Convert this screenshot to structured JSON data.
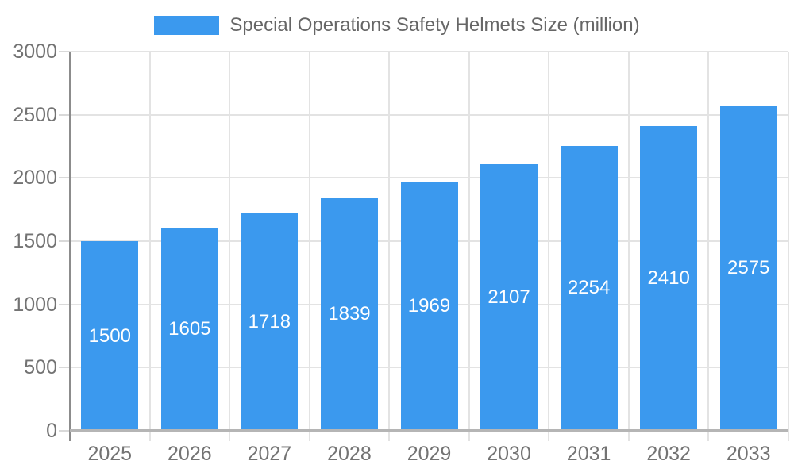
{
  "chart_data": {
    "type": "bar",
    "title": "Special Operations Safety Helmets Size (million)",
    "legend": [
      "Special Operations Safety Helmets Size (million)"
    ],
    "legend_position": "top-center",
    "categories": [
      "2025",
      "2026",
      "2027",
      "2028",
      "2029",
      "2030",
      "2031",
      "2032",
      "2033"
    ],
    "values": [
      1500,
      1605,
      1718,
      1839,
      1969,
      2107,
      2254,
      2410,
      2575
    ],
    "xlabel": "",
    "ylabel": "",
    "ylim": [
      0,
      3000
    ],
    "yticks": [
      0,
      500,
      1000,
      1500,
      2000,
      2500,
      3000
    ],
    "grid": true,
    "value_labels": "inside-center",
    "colors": {
      "bar": "#3B99EE",
      "gridline": "#E3E3E3",
      "axis_line": "#8C8C8C",
      "baseline": "#B5B5B5",
      "tick": "#D9D9D9",
      "axis_text": "#737373",
      "value_label_text": "#FFFFFF",
      "legend_text": "#666666",
      "background": "#FFFFFF"
    }
  }
}
